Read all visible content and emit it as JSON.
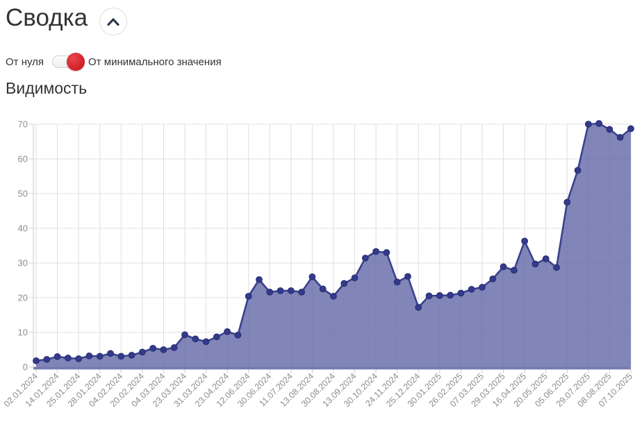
{
  "header": {
    "title": "Сводка"
  },
  "toggle": {
    "left_label": "От нуля",
    "right_label": "От минимального значения",
    "state": "right",
    "knob_color": "#d21e26"
  },
  "chart": {
    "title": "Видимость"
  },
  "chart_data": {
    "type": "area",
    "title": "Видимость",
    "categories": [
      "02.01.2024",
      "14.01.2024",
      "25.01.2024",
      "28.01.2024",
      "04.02.2024",
      "20.02.2024",
      "04.03.2024",
      "23.03.2024",
      "31.03.2024",
      "23.04.2024",
      "12.06.2024",
      "30.06.2024",
      "11.07.2024",
      "13.08.2024",
      "30.08.2024",
      "13.09.2024",
      "30.10.2024",
      "24.11.2024",
      "25.12.2024",
      "30.01.2025",
      "26.02.2025",
      "07.03.2025",
      "29.03.2025",
      "16.04.2025",
      "20.05.2025",
      "05.06.2025",
      "29.07.2025",
      "08.08.2025",
      "07.10.2025"
    ],
    "label_every_n_points": 2,
    "values": [
      1.8,
      2.2,
      3.0,
      2.6,
      2.4,
      3.2,
      3.1,
      3.9,
      3.1,
      3.4,
      4.3,
      5.4,
      5.0,
      5.6,
      9.3,
      8.1,
      7.3,
      8.7,
      10.2,
      9.2,
      20.4,
      25.2,
      21.6,
      22.0,
      22.0,
      21.6,
      26.0,
      22.5,
      20.4,
      24.1,
      25.7,
      31.4,
      33.3,
      33.0,
      24.5,
      26.1,
      17.2,
      20.5,
      20.6,
      20.7,
      21.3,
      22.4,
      23.0,
      25.4,
      28.9,
      27.9,
      36.3,
      29.7,
      31.2,
      28.7,
      47.5,
      56.7,
      70.0,
      70.2,
      68.5,
      66.2,
      68.7
    ],
    "xlabel": "",
    "ylabel": "",
    "ylim": [
      0,
      70
    ],
    "ytick_step": 10,
    "yticks": [
      "0",
      "10",
      "20",
      "30",
      "40",
      "50",
      "60",
      "70"
    ],
    "grid": true,
    "legend": "none",
    "colors": {
      "area_fill": "rgba(98,103,166,0.8)",
      "line": "#3a4190",
      "point_fill": "#343b8c",
      "point_stroke": "#2a2f72",
      "baseline": "#757bb0",
      "h_gridline": "#e0e0e0",
      "v_gridline": "#dedede",
      "axis_line": "#cccccc",
      "tick_text": "#8c8c8c"
    }
  }
}
